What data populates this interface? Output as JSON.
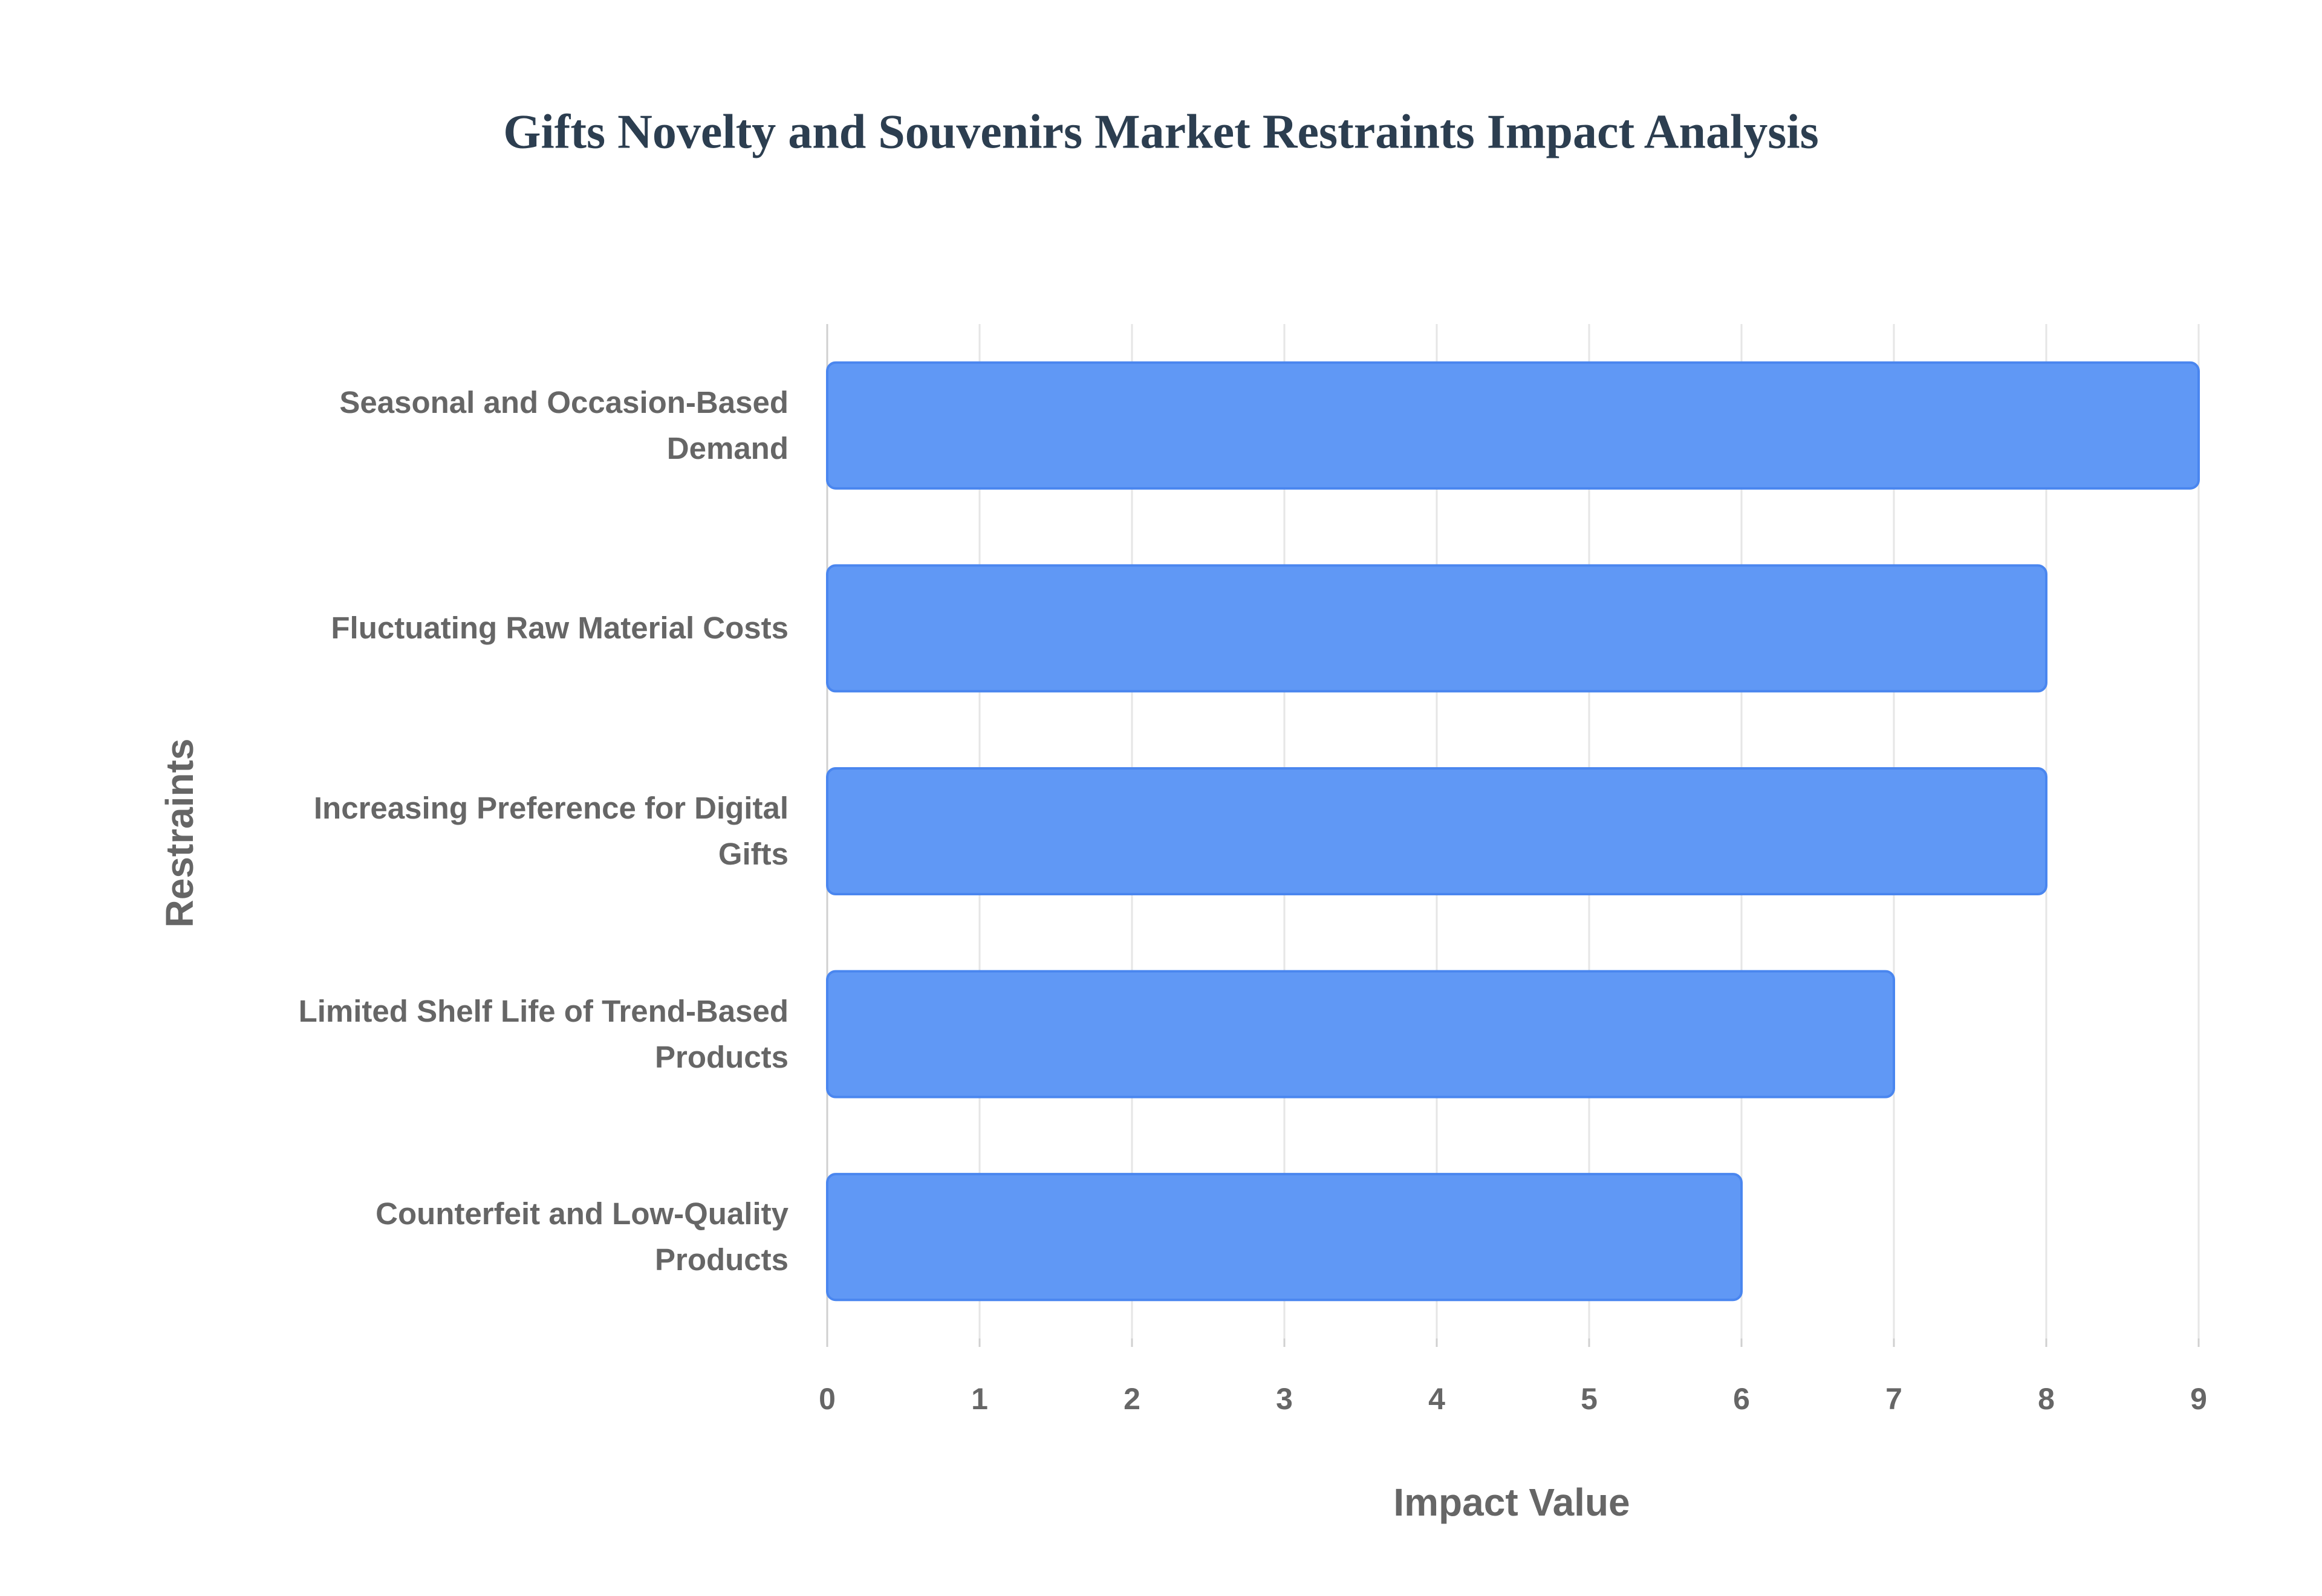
{
  "chart_data": {
    "type": "bar",
    "orientation": "horizontal",
    "title": "Gifts Novelty and Souvenirs Market Restraints Impact Analysis",
    "x_label": "Impact Value",
    "y_label": "Restraints",
    "categories": [
      "Seasonal and Occasion-Based Demand",
      "Fluctuating Raw Material Costs",
      "Increasing Preference for Digital Gifts",
      "Limited Shelf Life of Trend-Based Products",
      "Counterfeit and Low-Quality Products"
    ],
    "values": [
      9,
      8,
      8,
      7,
      6
    ],
    "color": "#6098f5",
    "xlim": [
      0,
      9
    ],
    "xticks": [
      0,
      1,
      2,
      3,
      4,
      5,
      6,
      7,
      8,
      9
    ],
    "grid": true
  }
}
